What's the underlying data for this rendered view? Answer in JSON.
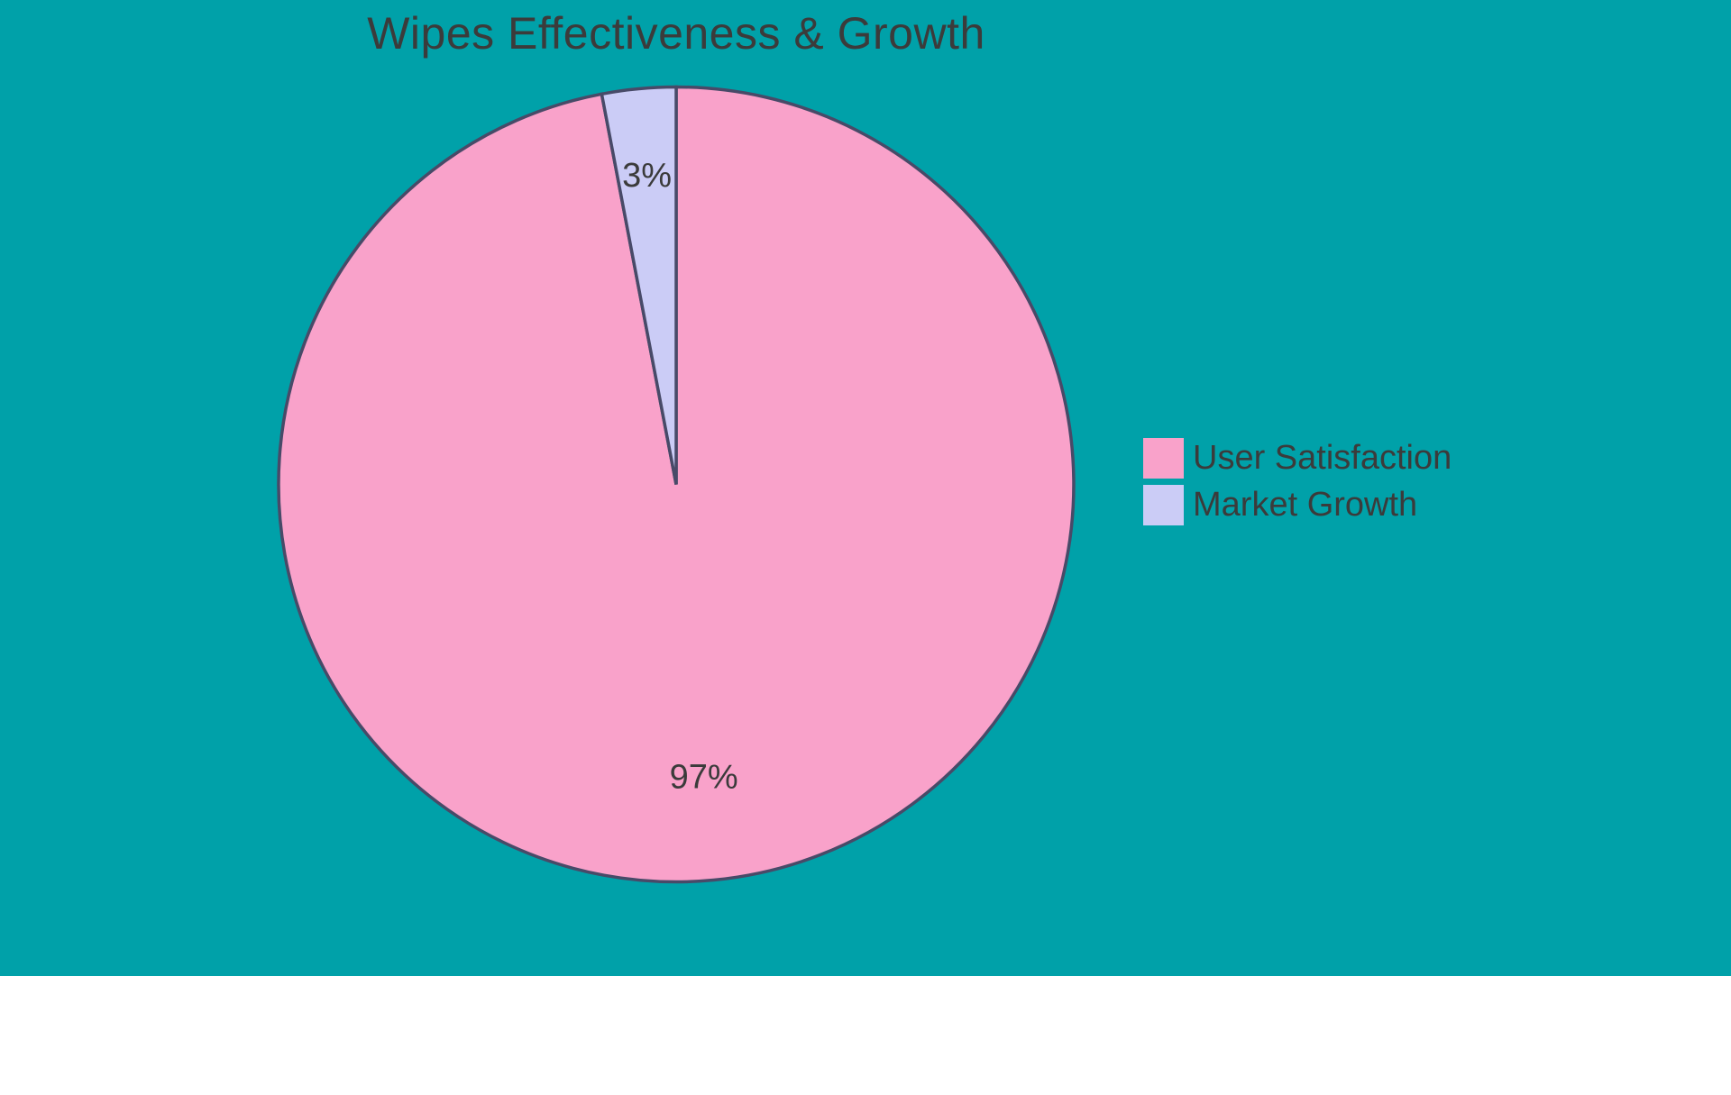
{
  "page": {
    "background_color": "#00A1A9",
    "footer_color": "#FFFFFF"
  },
  "chart_data": {
    "type": "pie",
    "title": "Wipes Effectiveness & Growth",
    "categories": [
      "User Satisfaction",
      "Market Growth"
    ],
    "values": [
      97,
      3
    ],
    "slice_labels": [
      "97%",
      "3%"
    ],
    "colors": [
      "#F9A2CA",
      "#CBCCF6"
    ],
    "border_color": "#484A68",
    "text_color": "#3B3B3B",
    "legend_position": "right",
    "start_angle": "top",
    "direction": "clockwise",
    "label_radius_fractions": [
      0.74,
      0.78
    ]
  }
}
